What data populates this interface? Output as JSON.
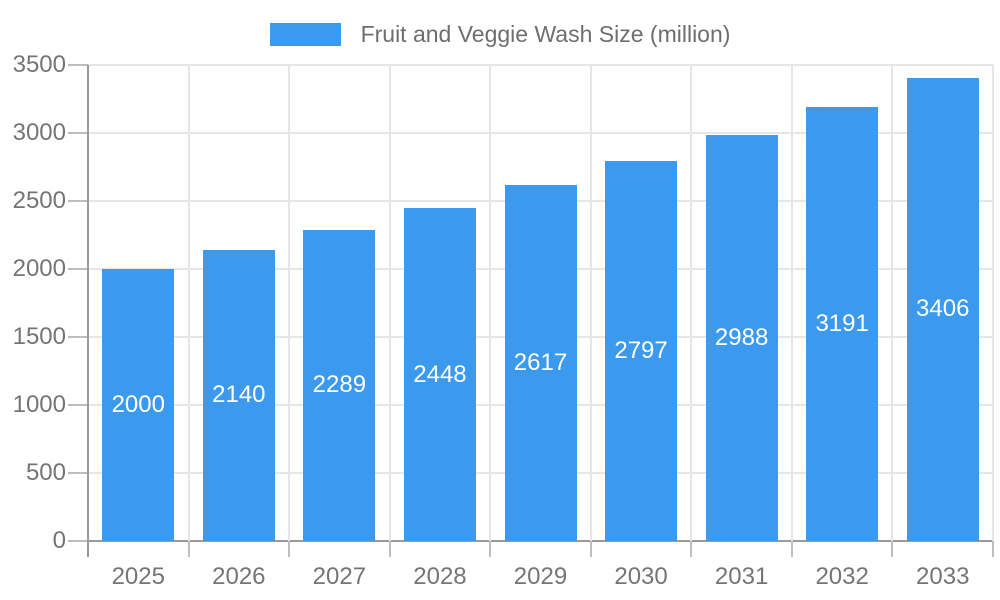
{
  "chart_data": {
    "type": "bar",
    "title": "Fruit and Veggie Wash Size (million)",
    "categories": [
      "2025",
      "2026",
      "2027",
      "2028",
      "2029",
      "2030",
      "2031",
      "2032",
      "2033"
    ],
    "values": [
      2000,
      2140,
      2289,
      2448,
      2617,
      2797,
      2988,
      3191,
      3406
    ],
    "xlabel": "",
    "ylabel": "",
    "ylim": [
      0,
      3500
    ],
    "ytick_step": 500,
    "ytick_labels": [
      "0",
      "500",
      "1000",
      "1500",
      "2000",
      "2500",
      "3000",
      "3500"
    ],
    "grid": "on",
    "legend_position": "top-center",
    "value_labels": "inside-center",
    "colors": {
      "bar": "#3B9AEE",
      "grid": "#E6E6E6",
      "axis": "#9A9A9A",
      "tick": "#BDBDBD",
      "tick_label": "#757575",
      "legend_label": "#6E6E6E",
      "value_label": "#FFFFFF",
      "background": "#FFFFFF"
    }
  }
}
